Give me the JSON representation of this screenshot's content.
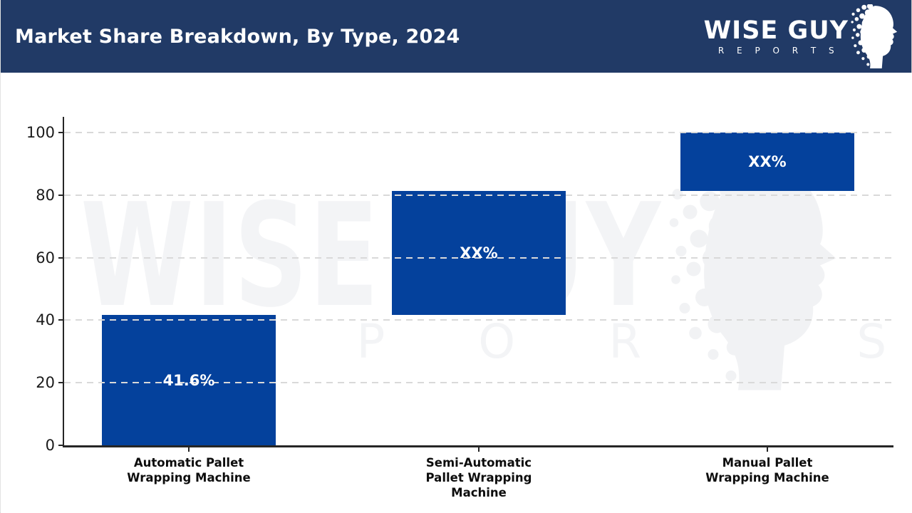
{
  "header": {
    "title": "Market Share Breakdown, By Type, 2024",
    "logo": {
      "wordmark": "WISE GUY",
      "sub": "R E P O R T S"
    }
  },
  "watermark": {
    "wordmark": "WISE GUY",
    "sub": "R E P O R T S"
  },
  "colors": {
    "header_bg": "#213A66",
    "bar_blue": "#04419C",
    "grid_line": "#D9D9D9",
    "axis_line": "#262626",
    "watermark_gray": "#F3F4F6",
    "bar_label_text": "#FFFFFF",
    "title_text": "#FFFFFF"
  },
  "chart_data": {
    "type": "bar",
    "variant": "stacked-waterfall",
    "title": "Market Share Breakdown, By Type, 2024",
    "xlabel": "",
    "ylabel": "",
    "ylim": [
      0,
      100
    ],
    "y_ticks": [
      0,
      20,
      40,
      60,
      80,
      100
    ],
    "grid": "horizontal-dashed",
    "legend": "none",
    "categories": [
      "Automatic Pallet Wrapping Machine",
      "Semi-Automatic Pallet Wrapping Machine",
      "Manual Pallet Wrapping Machine"
    ],
    "tick_label_lines": [
      [
        "Automatic Pallet",
        "Wrapping Machine"
      ],
      [
        "Semi-Automatic",
        "Pallet Wrapping",
        "Machine"
      ],
      [
        "Manual Pallet",
        "Wrapping Machine"
      ]
    ],
    "segments": [
      {
        "category": "Automatic Pallet Wrapping Machine",
        "start": 0,
        "end": 41.6,
        "label": "41.6%",
        "implied_value": 41.6
      },
      {
        "category": "Semi-Automatic Pallet Wrapping Machine",
        "start": 41.6,
        "end": 81.4,
        "label": "XX%",
        "implied_value": 39.8
      },
      {
        "category": "Manual Pallet Wrapping Machine",
        "start": 81.4,
        "end": 100,
        "label": "XX%",
        "implied_value": 18.6
      }
    ]
  }
}
